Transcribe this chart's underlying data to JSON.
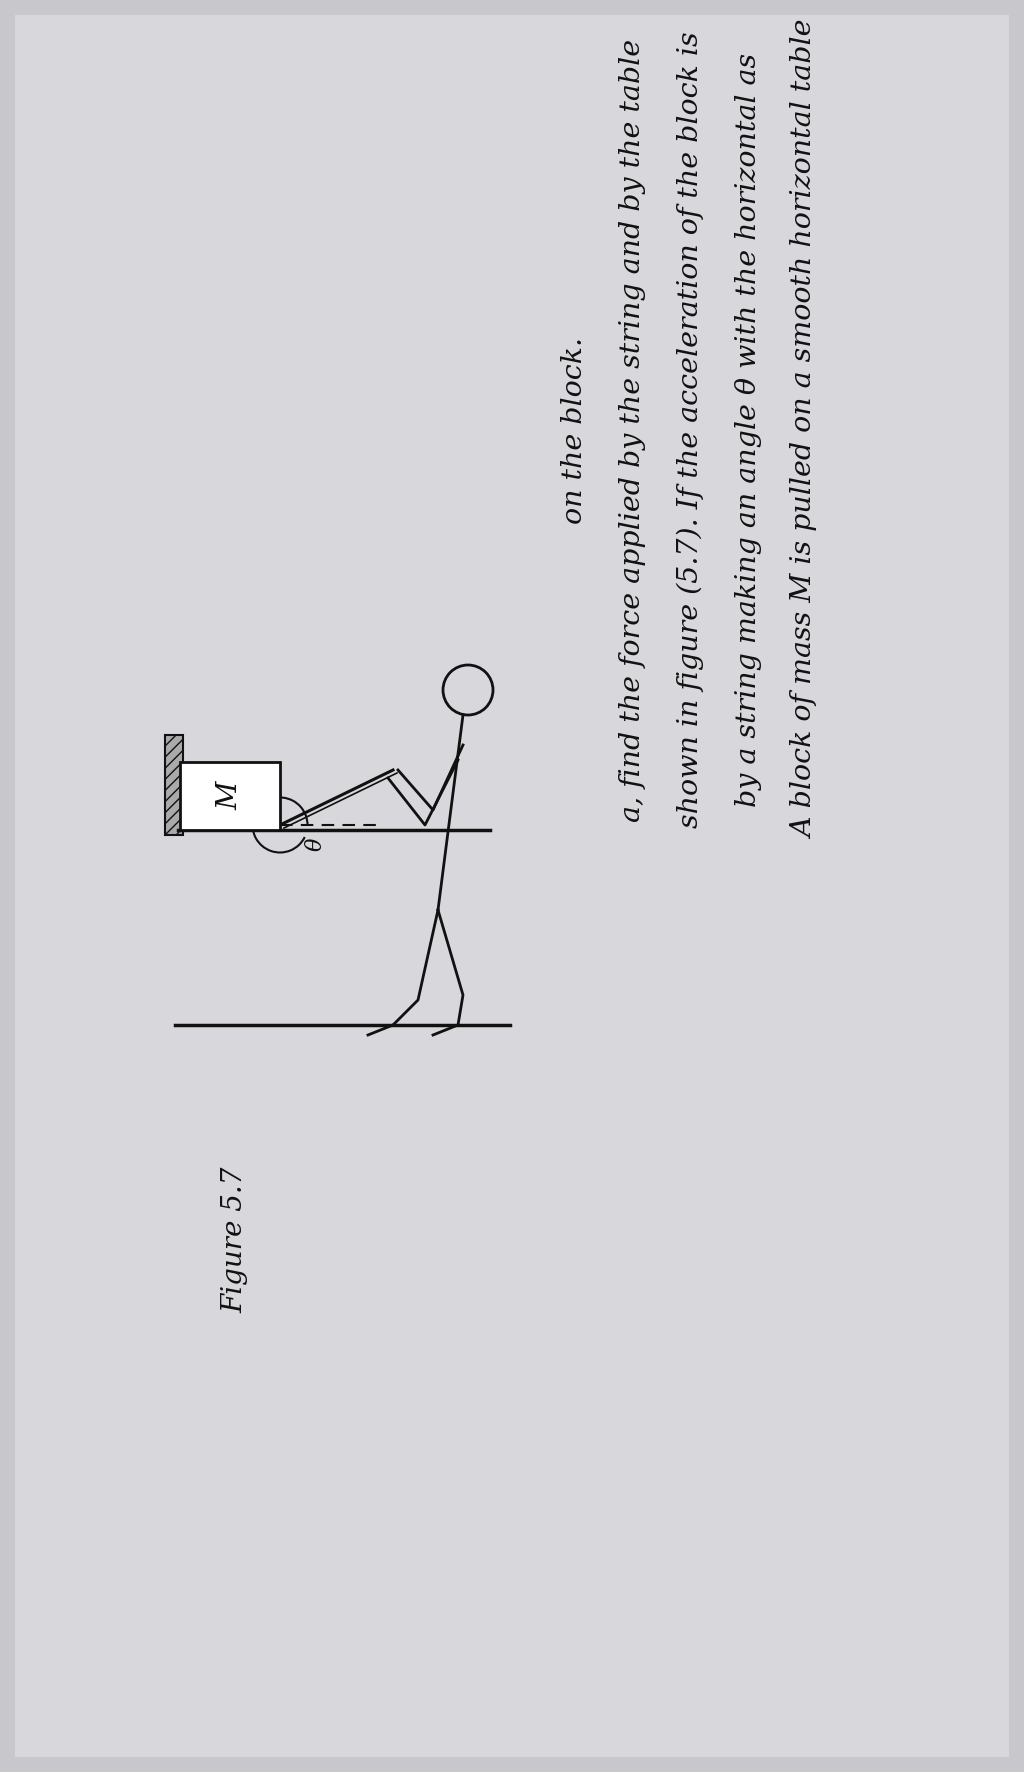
{
  "bg_color": "#c8c8cc",
  "paper_color": "#d8d8dc",
  "line_color": "#111111",
  "text_color": "#111111",
  "hatch_color": "#999999",
  "text_line1": "A block of mass M is pulled on a smooth horizontal table",
  "text_line2": "by a string making an angle θ with the horizontal as",
  "text_line3": "shown in figure (5.7). If the acceleration of the block is",
  "text_line4": "a, find the force applied by the string and by the table",
  "text_line5": "on the block.",
  "figure_caption": "Figure 5.7",
  "block_label": "M",
  "angle_label": "θ",
  "fig_width": 10.24,
  "fig_height": 17.72,
  "dpi": 100
}
